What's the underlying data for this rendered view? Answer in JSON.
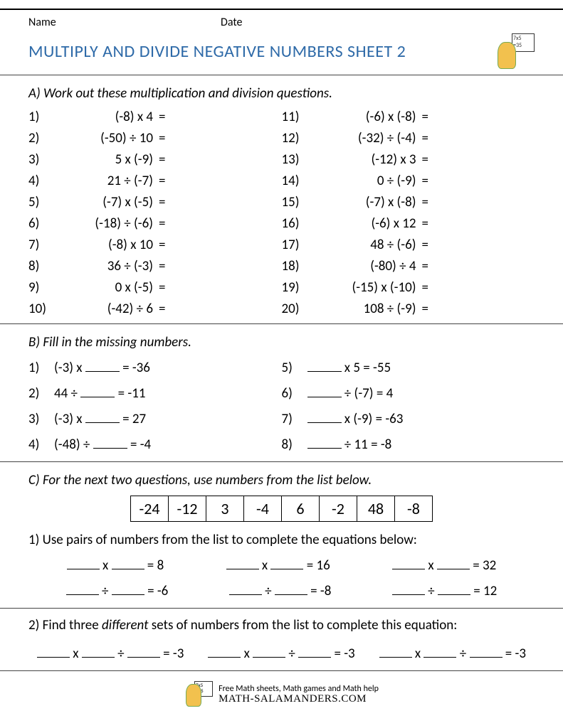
{
  "header": {
    "name_label": "Name",
    "date_label": "Date"
  },
  "title": "MULTIPLY AND DIVIDE NEGATIVE NUMBERS SHEET 2",
  "colors": {
    "title": "#2e6aa8",
    "text": "#000000",
    "rule": "#000000"
  },
  "logo": {
    "board_line1": "7x5",
    "board_line2": "=35"
  },
  "sectionA": {
    "label": "A) Work out these multiplication and division questions.",
    "left": [
      {
        "n": "1)",
        "expr": "(-8) x 4"
      },
      {
        "n": "2)",
        "expr": "(-50) ÷ 10"
      },
      {
        "n": "3)",
        "expr": "5 x (-9)"
      },
      {
        "n": "4)",
        "expr": "21 ÷ (-7)"
      },
      {
        "n": "5)",
        "expr": "(-7) x (-5)"
      },
      {
        "n": "6)",
        "expr": "(-18) ÷ (-6)"
      },
      {
        "n": "7)",
        "expr": "(-8) x 10"
      },
      {
        "n": "8)",
        "expr": "36 ÷ (-3)"
      },
      {
        "n": "9)",
        "expr": "0 x (-5)"
      },
      {
        "n": "10)",
        "expr": "(-42) ÷ 6"
      }
    ],
    "right": [
      {
        "n": "11)",
        "expr": "(-6) x (-8)"
      },
      {
        "n": "12)",
        "expr": "(-32) ÷ (-4)"
      },
      {
        "n": "13)",
        "expr": "(-12) x 3"
      },
      {
        "n": "14)",
        "expr": "0 ÷ (-9)"
      },
      {
        "n": "15)",
        "expr": "(-7) x (-8)"
      },
      {
        "n": "16)",
        "expr": "(-6) x 12"
      },
      {
        "n": "17)",
        "expr": "48 ÷ (-6)"
      },
      {
        "n": "18)",
        "expr": "(-80) ÷ 4"
      },
      {
        "n": "19)",
        "expr": "(-15) x (-10)"
      },
      {
        "n": "20)",
        "expr": "108 ÷ (-9)"
      }
    ],
    "eq": "="
  },
  "sectionB": {
    "label": "B) Fill in the missing numbers.",
    "left": [
      {
        "n": "1)",
        "pre": "(-3) x ",
        "post": " = -36"
      },
      {
        "n": "2)",
        "pre": "44 ÷ ",
        "post": " = -11"
      },
      {
        "n": "3)",
        "pre": "(-3) x ",
        "post": " = 27"
      },
      {
        "n": "4)",
        "pre": "(-48) ÷ ",
        "post": " = -4"
      }
    ],
    "right": [
      {
        "n": "5)",
        "pre": "",
        "post": " x 5 = -55"
      },
      {
        "n": "6)",
        "pre": "",
        "post": " ÷ (-7) = 4"
      },
      {
        "n": "7)",
        "pre": "",
        "post": " x (-9) = -63"
      },
      {
        "n": "8)",
        "pre": "",
        "post": " ÷ 11 = -8"
      }
    ]
  },
  "sectionC": {
    "label": "C) For the next two questions, use numbers from the list below.",
    "numbers": [
      "-24",
      "-12",
      "3",
      "-4",
      "6",
      "-2",
      "48",
      "-8"
    ],
    "q1_text": "1) Use pairs of numbers from the list to complete the equations below:",
    "q1_row1": [
      {
        "op": " x ",
        "result": " = 8"
      },
      {
        "op": " x ",
        "result": " = 16"
      },
      {
        "op": " x ",
        "result": " = 32"
      }
    ],
    "q1_row2": [
      {
        "op": " ÷ ",
        "result": " = -6"
      },
      {
        "op": " ÷ ",
        "result": " = -8"
      },
      {
        "op": " ÷ ",
        "result": " = 12"
      }
    ],
    "q2_text_pre": "2) Find three ",
    "q2_text_ital": "different",
    "q2_text_post": " sets of numbers from the list to complete this equation:",
    "q2_items": [
      {
        "op1": " x ",
        "op2": " ÷ ",
        "result": " = -3"
      },
      {
        "op1": " x ",
        "op2": " ÷ ",
        "result": " = -3"
      },
      {
        "op1": " x ",
        "op2": " ÷ ",
        "result": " = -3"
      }
    ]
  },
  "footer": {
    "tagline": "Free Math sheets, Math games and Math help",
    "site": "MATH-SALAMANDERS.COM",
    "board_line1": "7x5",
    "board_line2": "=35"
  }
}
